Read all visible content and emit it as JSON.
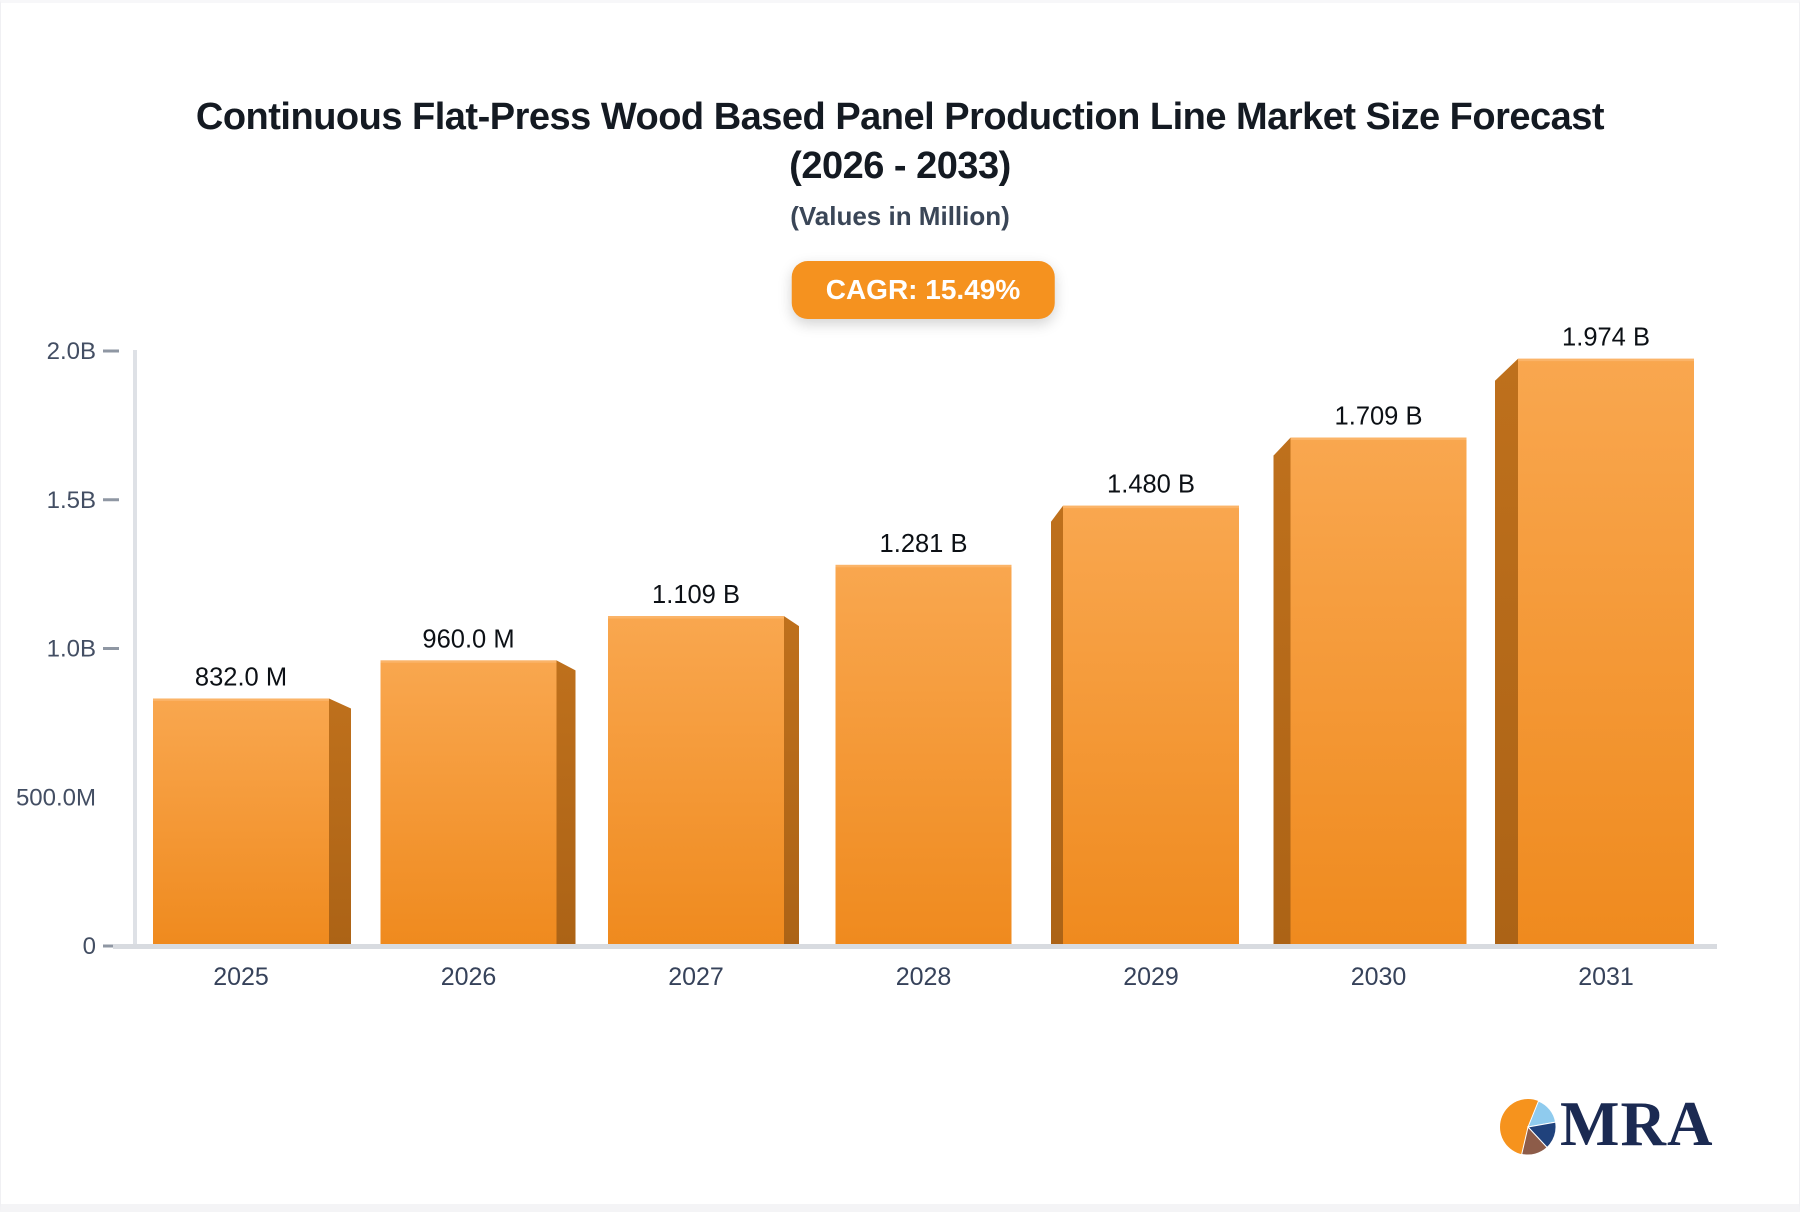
{
  "page": {
    "title_line1": "Continuous Flat-Press Wood Based Panel Production Line Market Size Forecast",
    "title_line2": "(2026 - 2033)",
    "subtitle": "(Values in Million)",
    "cagr_badge": "CAGR: 15.49%"
  },
  "chart_data": {
    "type": "bar",
    "title": "Continuous Flat-Press Wood Based Panel Production Line Market Size Forecast (2026 - 2033)",
    "subtitle": "(Values in Million)",
    "cagr_percent": 15.49,
    "categories": [
      "2025",
      "2026",
      "2027",
      "2028",
      "2029",
      "2030",
      "2031"
    ],
    "values_millions": [
      832.0,
      960.0,
      1109,
      1281,
      1480,
      1709,
      1974
    ],
    "value_labels": [
      "832.0 M",
      "960.0 M",
      "1.109 B",
      "1.281 B",
      "1.480 B",
      "1.709 B",
      "1.974 B"
    ],
    "ylim_millions": [
      0,
      2000
    ],
    "y_ticks": [
      {
        "label": "2.0B",
        "value": 2000,
        "dash": true
      },
      {
        "label": "1.5B",
        "value": 1500,
        "dash": true
      },
      {
        "label": "1.0B",
        "value": 1000,
        "dash": true
      },
      {
        "label": "500.0M",
        "value": 500,
        "dash": false
      },
      {
        "label": "0",
        "value": 0,
        "dash": true
      }
    ],
    "grid": false,
    "legend": false
  },
  "colors": {
    "bar_front_top": "#F9A74F",
    "bar_front_bottom": "#EF8A1E",
    "bar_top_edge": "#FBB468",
    "bar_side": "#BE701C",
    "badge_bg": "#F5921F",
    "axis_line": "#DEE1E6",
    "baseline": "#D8DBE0",
    "tick": "#8F97A3",
    "y_label": "#434E63",
    "x_label": "#36425A",
    "value_label": "#0C1015",
    "title": "#141A22",
    "subtitle": "#3A4657"
  },
  "logo": {
    "text": "MRA",
    "text_color": "#1B2A52",
    "pie_orange": "#F6931D",
    "pie_lightblue": "#8FCBEE",
    "pie_navy": "#20427C",
    "pie_brown": "#8D5C49"
  }
}
